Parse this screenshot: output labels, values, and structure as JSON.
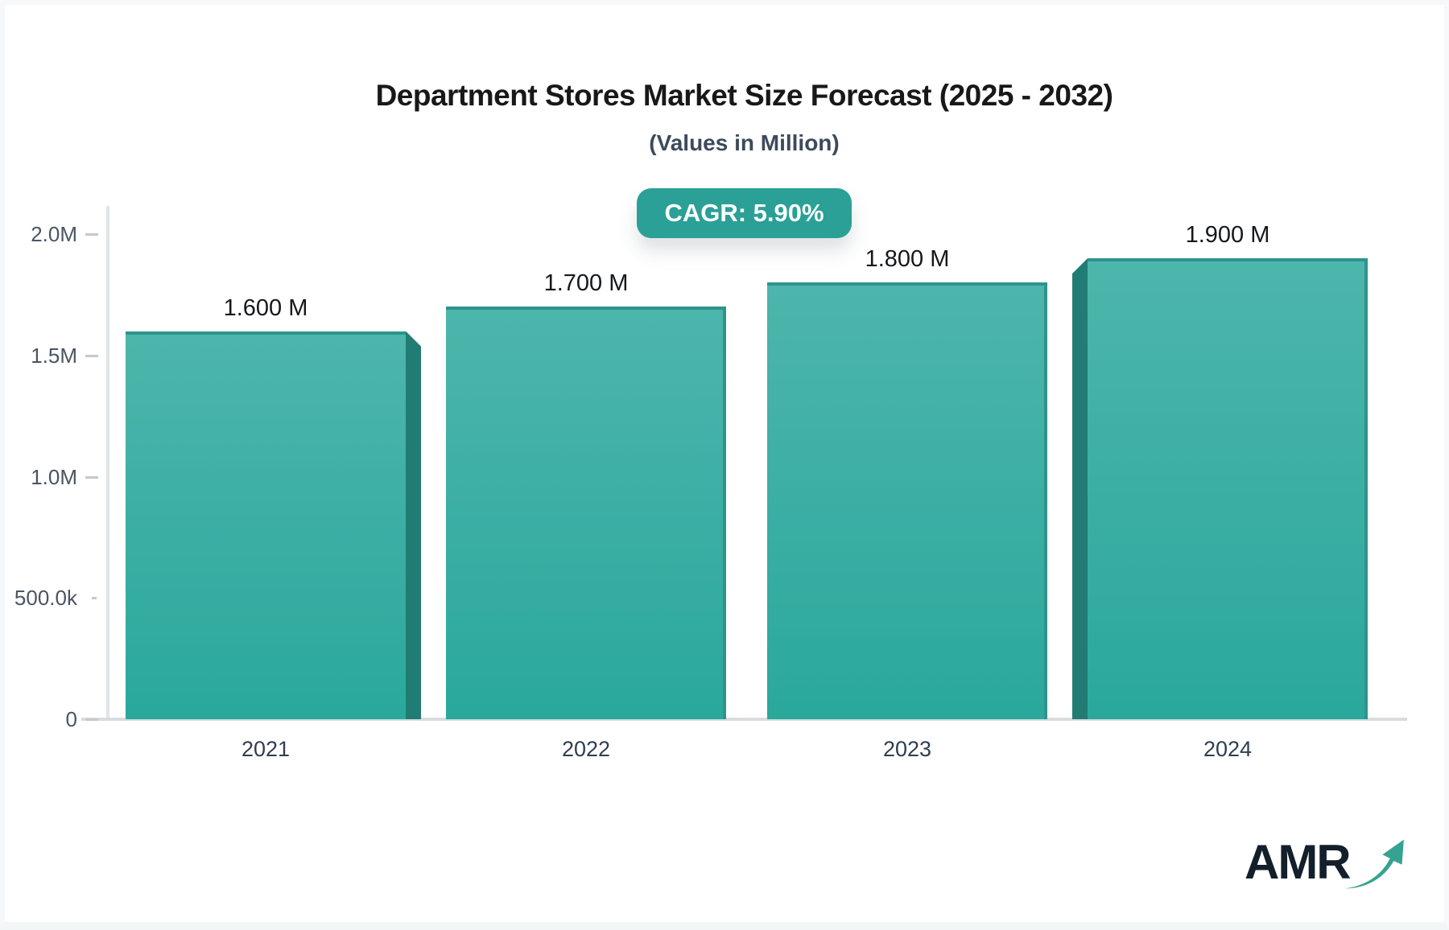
{
  "header": {
    "title": "Department Stores Market Size Forecast (2025 - 2032)",
    "subtitle": "(Values in Million)",
    "badge": "CAGR: 5.90%"
  },
  "chart_data": {
    "type": "bar",
    "title": "Department Stores Market Size Forecast (2025 - 2032)",
    "subtitle": "(Values in Million)",
    "annotation": "CAGR: 5.90%",
    "categories": [
      "2021",
      "2022",
      "2023",
      "2024"
    ],
    "values": [
      1600000,
      1700000,
      1800000,
      1900000
    ],
    "bar_labels": [
      "1.600 M",
      "1.700 M",
      "1.800 M",
      "1.900 M"
    ],
    "y_ticks": [
      {
        "label": "0",
        "value": 0,
        "minor": false
      },
      {
        "label": "500.0k",
        "value": 500000,
        "minor": true
      },
      {
        "label": "1.0M",
        "value": 1000000,
        "minor": false
      },
      {
        "label": "1.5M",
        "value": 1500000,
        "minor": false
      },
      {
        "label": "2.0M",
        "value": 2000000,
        "minor": false
      }
    ],
    "ylim": [
      0,
      2000000
    ],
    "xlabel": "",
    "ylabel": "",
    "grid": false,
    "legend": null,
    "colors": {
      "bar_top": "#4db5ac",
      "bar_bottom": "#2aa89c",
      "bar_edge": "#2e948b",
      "bar_side": "#217c74",
      "badge_bg": "#2aa096",
      "axis_line": "#e1e5e8",
      "tick_text": "#4a5563",
      "xlabel_text": "#2f3d4f",
      "value_text": "#15181c"
    }
  },
  "logo": {
    "text": "AMR",
    "color": "#131f2b",
    "arrow_icon": "growth-arrow",
    "arrow_color": "#36a392"
  }
}
